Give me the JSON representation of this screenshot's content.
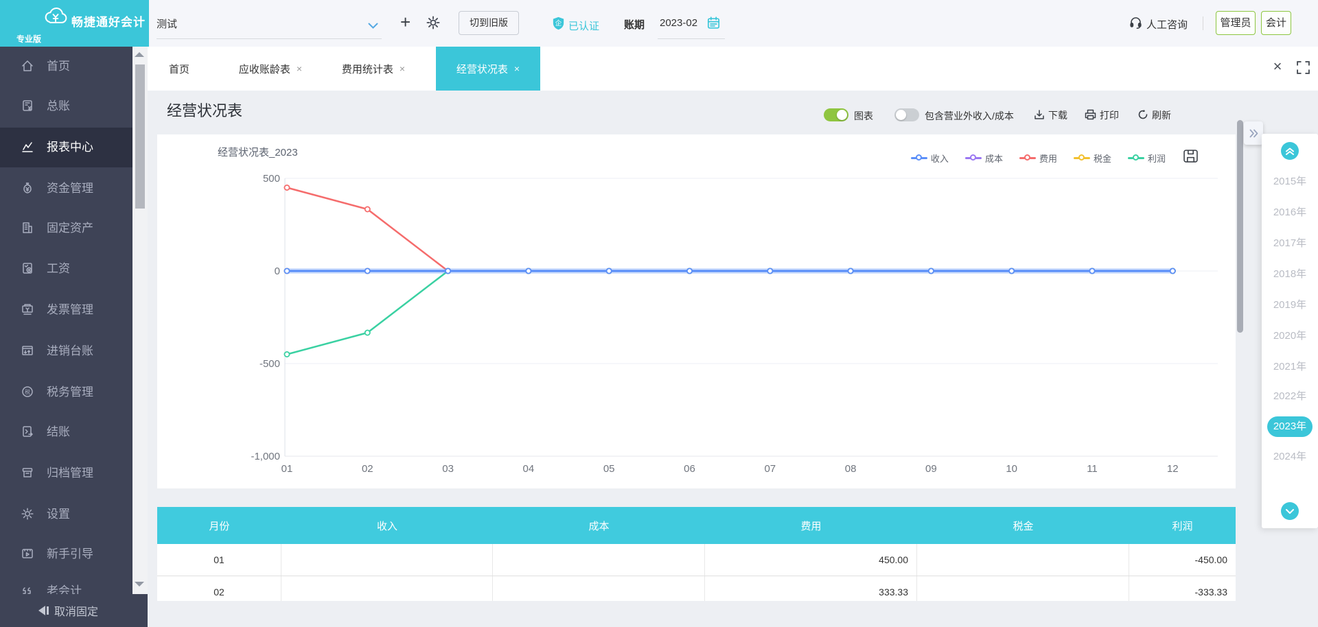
{
  "brand": {
    "name": "畅捷通好会计",
    "edition": "专业版"
  },
  "topbar": {
    "account": "测试",
    "add": "+",
    "switch_old": "切到旧版",
    "certified": "已认证",
    "period_label": "账期",
    "period_value": "2023-02",
    "support": "人工咨询",
    "roles": [
      "管理员",
      "会计"
    ]
  },
  "sidebar": {
    "items": [
      {
        "label": "首页",
        "icon": "home",
        "active": false
      },
      {
        "label": "总账",
        "icon": "ledger",
        "active": false
      },
      {
        "label": "报表中心",
        "icon": "report",
        "active": true
      },
      {
        "label": "资金管理",
        "icon": "funds",
        "active": false
      },
      {
        "label": "固定资产",
        "icon": "assets",
        "active": false
      },
      {
        "label": "工资",
        "icon": "salary",
        "active": false
      },
      {
        "label": "发票管理",
        "icon": "invoice",
        "active": false
      },
      {
        "label": "进销台账",
        "icon": "trade",
        "active": false
      },
      {
        "label": "税务管理",
        "icon": "tax",
        "active": false
      },
      {
        "label": "结账",
        "icon": "closing",
        "active": false
      },
      {
        "label": "归档管理",
        "icon": "archive",
        "active": false
      },
      {
        "label": "设置",
        "icon": "settings",
        "active": false
      },
      {
        "label": "新手引导",
        "icon": "guide",
        "active": false
      },
      {
        "label": "老会计",
        "icon": "expert",
        "active": false,
        "clipped": true
      }
    ],
    "unpin": "取消固定"
  },
  "tabs": [
    {
      "label": "首页",
      "closable": false,
      "active": false
    },
    {
      "label": "应收账龄表",
      "closable": true,
      "active": false
    },
    {
      "label": "费用统计表",
      "closable": true,
      "active": false
    },
    {
      "label": "经营状况表",
      "closable": true,
      "active": true
    }
  ],
  "page": {
    "title": "经营状况表",
    "chart_toggle": {
      "label": "图表",
      "on": true
    },
    "include_toggle": {
      "label": "包含营业外收入/成本",
      "on": false
    },
    "actions": {
      "download": "下载",
      "print": "打印",
      "refresh": "刷新"
    }
  },
  "chart_data": {
    "type": "line",
    "title": "经营状况表_2023",
    "categories": [
      "01",
      "02",
      "03",
      "04",
      "05",
      "06",
      "07",
      "08",
      "09",
      "10",
      "11",
      "12"
    ],
    "series": [
      {
        "name": "收入",
        "color": "#5B8FF9",
        "values": [
          0,
          0,
          0,
          0,
          0,
          0,
          0,
          0,
          0,
          0,
          0,
          0
        ]
      },
      {
        "name": "成本",
        "color": "#9A77F2",
        "values": [
          0,
          0,
          0,
          0,
          0,
          0,
          0,
          0,
          0,
          0,
          0,
          0
        ]
      },
      {
        "name": "费用",
        "color": "#F56C6C",
        "values": [
          450,
          333.33,
          0,
          0,
          0,
          0,
          0,
          0,
          0,
          0,
          0,
          0
        ]
      },
      {
        "name": "税金",
        "color": "#F2C02E",
        "values": [
          0,
          0,
          0,
          0,
          0,
          0,
          0,
          0,
          0,
          0,
          0,
          0
        ]
      },
      {
        "name": "利润",
        "color": "#3AD1A2",
        "values": [
          -450,
          -333.33,
          0,
          0,
          0,
          0,
          0,
          0,
          0,
          0,
          0,
          0
        ]
      }
    ],
    "yticks": [
      500,
      0,
      -500,
      -1000
    ],
    "ylim": [
      -1000,
      500
    ],
    "grid": true,
    "legend_position": "top-right"
  },
  "years": {
    "items": [
      "2015年",
      "2016年",
      "2017年",
      "2018年",
      "2019年",
      "2020年",
      "2021年",
      "2022年",
      "2023年",
      "2024年"
    ],
    "selected_index": 8
  },
  "table": {
    "columns": [
      "月份",
      "收入",
      "成本",
      "费用",
      "税金",
      "利润"
    ],
    "rows": [
      [
        "01",
        "",
        "",
        "450.00",
        "",
        "-450.00"
      ],
      [
        "02",
        "",
        "",
        "333.33",
        "",
        "-333.33"
      ]
    ]
  },
  "colors": {
    "brand_teal": "#3BC6D9",
    "table_header_teal": "#40CBDE",
    "toggle_green": "#8FC540",
    "role_button_border": "#8CC63F",
    "sidebar_bg": "#3E4356",
    "sidebar_active_bg": "#2D3142",
    "chart_axis_text": "#70757E",
    "grid_line": "#ECEFF5"
  }
}
